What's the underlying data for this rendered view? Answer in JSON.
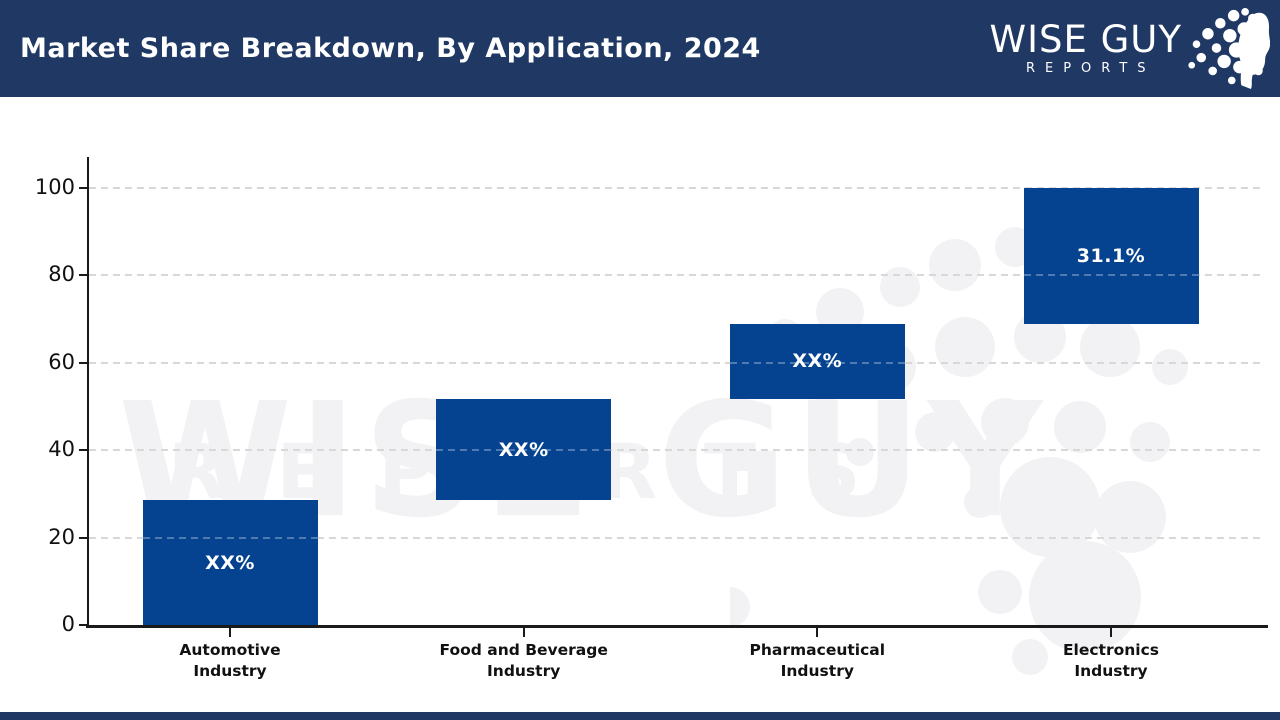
{
  "header": {
    "title": "Market Share Breakdown, By Application, 2024",
    "logo_line1": "WISE GUY",
    "logo_line2": "REPORTS",
    "bg_color": "#1f3864"
  },
  "watermark": {
    "line1": "WISE GUY",
    "line2": "REPORTS"
  },
  "chart_data": {
    "type": "bar",
    "subtype": "waterfall",
    "title": "Market Share Breakdown, By Application, 2024",
    "categories": [
      "Automotive\nIndustry",
      "Food and Beverage\nIndustry",
      "Pharmaceutical\nIndustry",
      "Electronics\nIndustry"
    ],
    "segments": [
      {
        "category": "Automotive Industry",
        "start": 0,
        "end": 28.6,
        "value": 28.6,
        "label": "XX%"
      },
      {
        "category": "Food and Beverage Industry",
        "start": 28.6,
        "end": 51.7,
        "value": 23.1,
        "label": "XX%"
      },
      {
        "category": "Pharmaceutical Industry",
        "start": 51.7,
        "end": 68.9,
        "value": 17.2,
        "label": "XX%"
      },
      {
        "category": "Electronics Industry",
        "start": 68.9,
        "end": 100,
        "value": 31.1,
        "label": "31.1%"
      }
    ],
    "yticks": [
      0,
      20,
      40,
      60,
      80,
      100
    ],
    "ylim": [
      0,
      105
    ],
    "xlabel": "",
    "ylabel": "",
    "grid": "horizontal-dashed",
    "legend": "none",
    "bar_color": "#05428f",
    "bar_label_color": "#ffffff",
    "axis_color": "#1a1a1a",
    "gridline_color": "#d8d8d8"
  }
}
